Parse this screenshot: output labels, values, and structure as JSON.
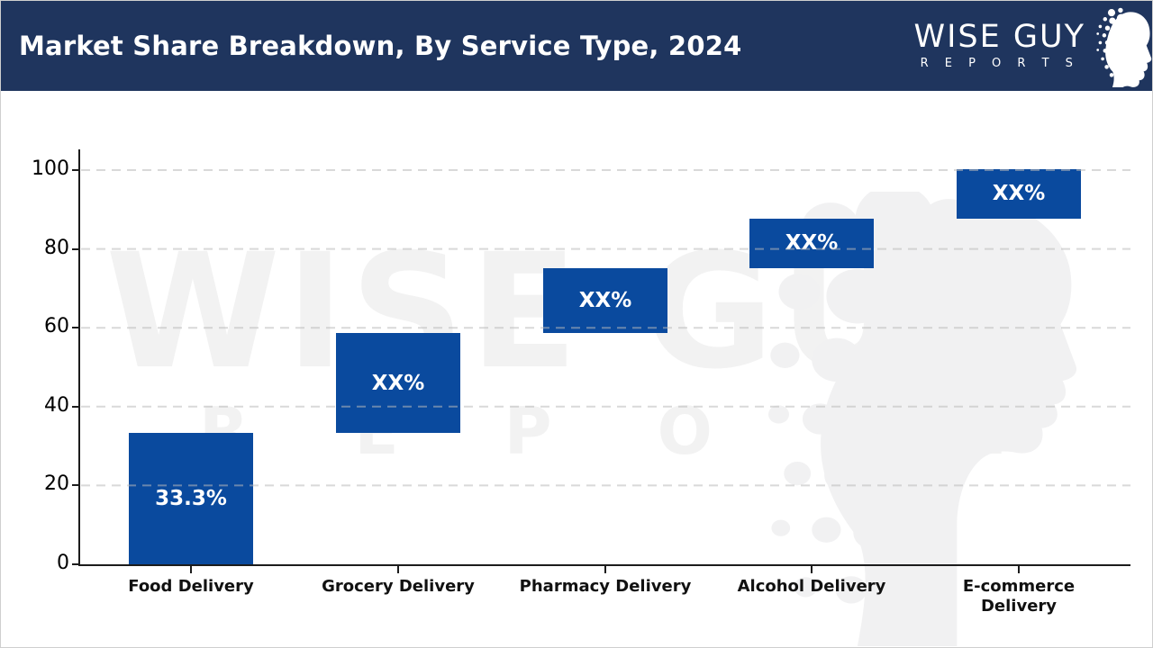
{
  "header": {
    "title": "Market Share Breakdown, By Service Type, 2024",
    "brand": {
      "name": "WISE GUY",
      "tagline": "R E P O R T S"
    },
    "colors": {
      "background": "#1F355E",
      "text": "#FFFFFF"
    }
  },
  "watermark": {
    "line1": "WISE GUY",
    "line2": "R E P O R T S",
    "head_icon": "dotted-head-profile"
  },
  "chart_data": {
    "type": "bar",
    "subtype": "floating-waterfall",
    "title": "Market Share Breakdown, By Service Type, 2024",
    "xlabel": "",
    "ylabel": "",
    "categories": [
      "Food Delivery",
      "Grocery Delivery",
      "Pharmacy Delivery",
      "Alcohol Delivery",
      "E-commerce Delivery"
    ],
    "segments": [
      {
        "category": "Food Delivery",
        "start": 0,
        "end": 33.3,
        "label": "33.3%"
      },
      {
        "category": "Grocery Delivery",
        "start": 33.3,
        "end": 58.6,
        "label": "XX%"
      },
      {
        "category": "Pharmacy Delivery",
        "start": 58.6,
        "end": 75.2,
        "label": "XX%"
      },
      {
        "category": "Alcohol Delivery",
        "start": 75.2,
        "end": 87.7,
        "label": "XX%"
      },
      {
        "category": "E-commerce Delivery",
        "start": 87.7,
        "end": 100.2,
        "label": "XX%"
      }
    ],
    "yticks": [
      0,
      20,
      40,
      60,
      80,
      100
    ],
    "ylim": [
      0,
      105
    ],
    "grid": "horizontal-dashed",
    "legend": "none",
    "colors": {
      "bar": "#0A4A9E",
      "bar_label": "#FFFFFF",
      "axis": "#1C1C1C",
      "tick_label": "#000000",
      "gridline": "#D7D7D7",
      "watermark": "#F2F2F2"
    }
  }
}
